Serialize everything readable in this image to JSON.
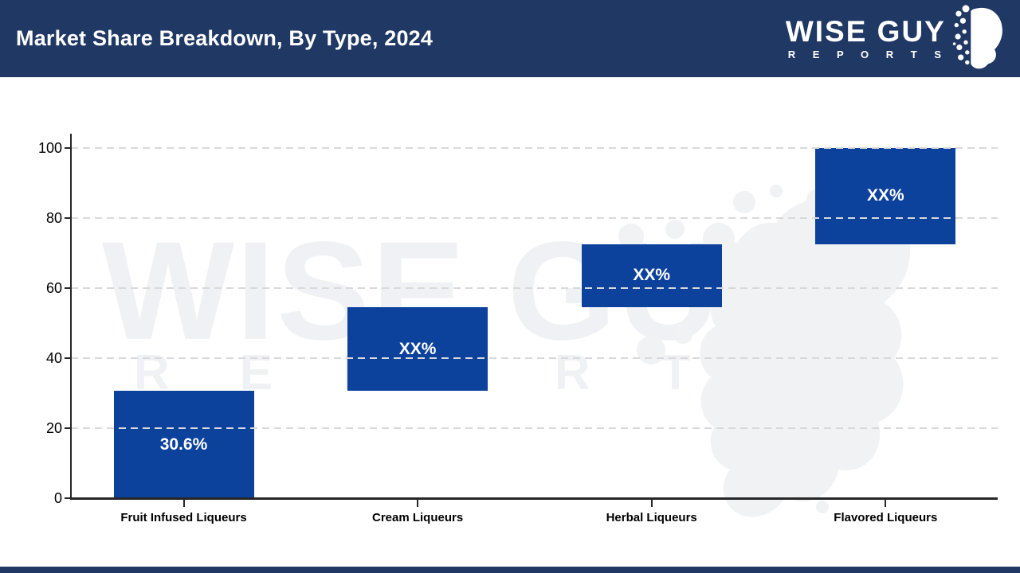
{
  "header": {
    "title": "Market Share Breakdown, By Type, 2024",
    "bg_color": "#203864",
    "logo": {
      "line1": "WISE GUY",
      "line2": "R E P O R T S"
    }
  },
  "watermark": {
    "line1": "WISE GUY",
    "line2": "REPORTS"
  },
  "chart_data": {
    "type": "bar",
    "subtype": "waterfall",
    "title": "Market Share Breakdown, By Type, 2024",
    "categories": [
      "Fruit Infused Liqueurs",
      "Cream Liqueurs",
      "Herbal Liqueurs",
      "Flavored Liqueurs"
    ],
    "segments": [
      {
        "category": "Fruit Infused Liqueurs",
        "label": "30.6%",
        "start": 0,
        "end": 30.6
      },
      {
        "category": "Cream Liqueurs",
        "label": "XX%",
        "start": 30.6,
        "end": 54.5
      },
      {
        "category": "Herbal Liqueurs",
        "label": "XX%",
        "start": 54.5,
        "end": 72.6
      },
      {
        "category": "Flavored Liqueurs",
        "label": "XX%",
        "start": 72.6,
        "end": 100
      }
    ],
    "yticks": [
      0,
      20,
      40,
      60,
      80,
      100
    ],
    "ylim": [
      0,
      105
    ],
    "xlabel": "",
    "ylabel": "",
    "grid": "horizontal-dashed-over-bars",
    "bar_color": "#0c419c",
    "bar_label_color": "#ffffff",
    "axis_color": "#262626",
    "gridline_color": "#d9d9d9"
  }
}
